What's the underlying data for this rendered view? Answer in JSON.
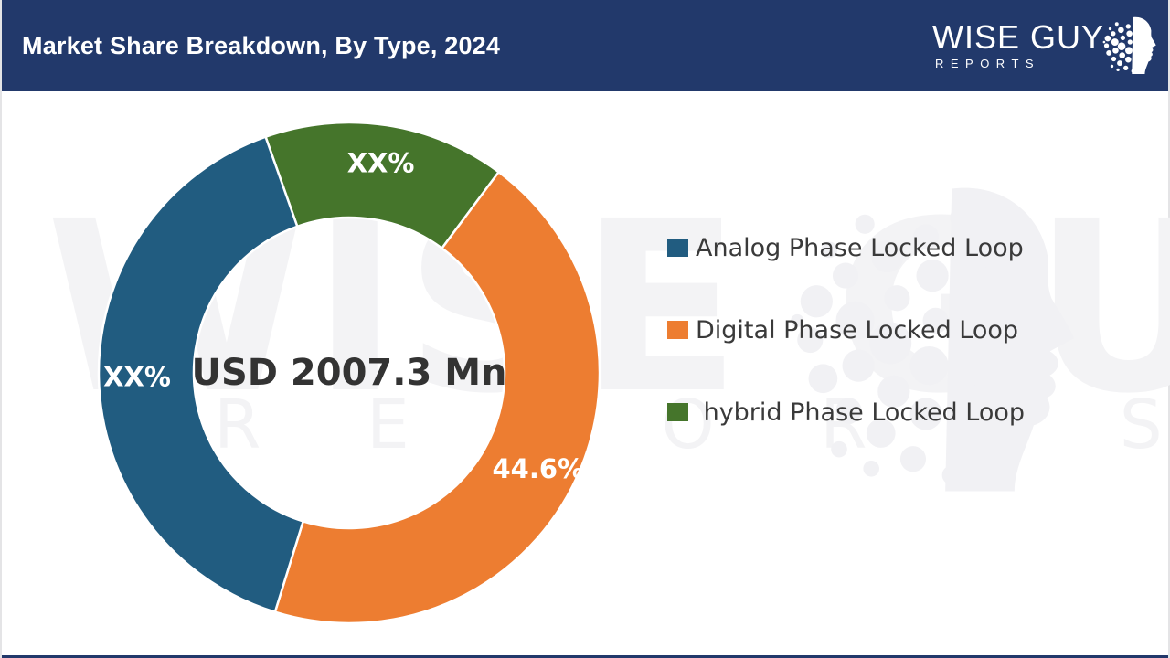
{
  "header": {
    "title": "Market Share Breakdown, By Type, 2024",
    "background_color": "#22396B",
    "logo": {
      "line1": "WISE GUY",
      "line2": "REPORTS"
    }
  },
  "watermark": {
    "line1": "WISE GUY",
    "line2": "R E P O R T S"
  },
  "chart_data": {
    "type": "pie",
    "subtype": "donut",
    "title": "Market Share Breakdown, By Type, 2024",
    "center_label": "USD 2007.3 Mn",
    "legend_position": "right",
    "start_angle_deg": 340.5,
    "draw_order": [
      2,
      1,
      0
    ],
    "donut_inner_ratio": 0.62,
    "gap_color": "#ffffff",
    "label_color": "#ffffff",
    "series": [
      {
        "name": "Analog Phase Locked Loop",
        "value_pct": 39.8,
        "display_label": "XX%",
        "color": "#215C80"
      },
      {
        "name": "Digital Phase Locked Loop",
        "value_pct": 44.6,
        "display_label": "44.6%",
        "color": "#ED7D31"
      },
      {
        "name": " hybrid Phase Locked Loop",
        "value_pct": 15.6,
        "display_label": "XX%",
        "color": "#45752B"
      }
    ]
  }
}
